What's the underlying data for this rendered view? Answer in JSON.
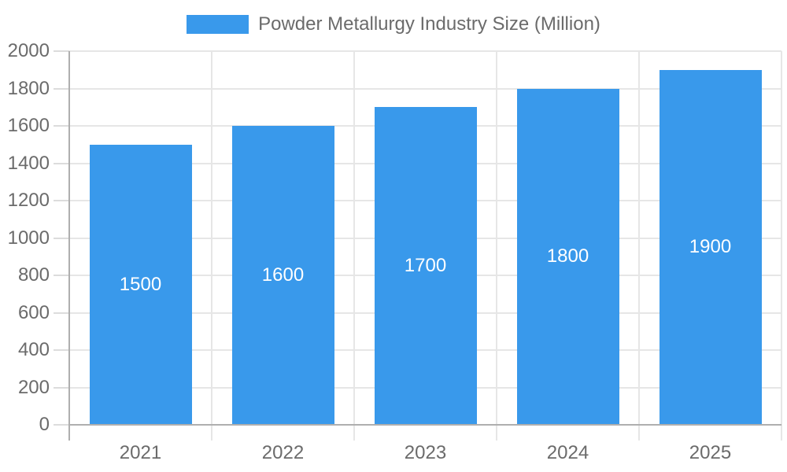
{
  "legend": {
    "label": "Powder Metallurgy Industry Size (Million)"
  },
  "chart_data": {
    "type": "bar",
    "title": "Powder Metallurgy Industry Size (Million)",
    "categories": [
      "2021",
      "2022",
      "2023",
      "2024",
      "2025"
    ],
    "series": [
      {
        "name": "Powder Metallurgy Industry Size (Million)",
        "values": [
          1500,
          1600,
          1700,
          1800,
          1900
        ],
        "color": "#3999EB"
      }
    ],
    "data_labels": [
      "1500",
      "1600",
      "1700",
      "1800",
      "1900"
    ],
    "xlabel": "",
    "ylabel": "",
    "ylim": [
      0,
      2000
    ],
    "ytick_step": 200,
    "ytick_labels": [
      "0",
      "200",
      "400",
      "600",
      "800",
      "1000",
      "1200",
      "1400",
      "1600",
      "1800",
      "2000"
    ],
    "grid": true,
    "legend_position": "top",
    "colors": {
      "bar": "#3999EB",
      "tick_text": "#6B6B6B",
      "grid_line": "#E6E6E6",
      "tick_mark": "#DCDCDC",
      "axis_line": "#AFAFAF",
      "value_label": "#FFFFFF",
      "background": "#FFFFFF"
    }
  }
}
